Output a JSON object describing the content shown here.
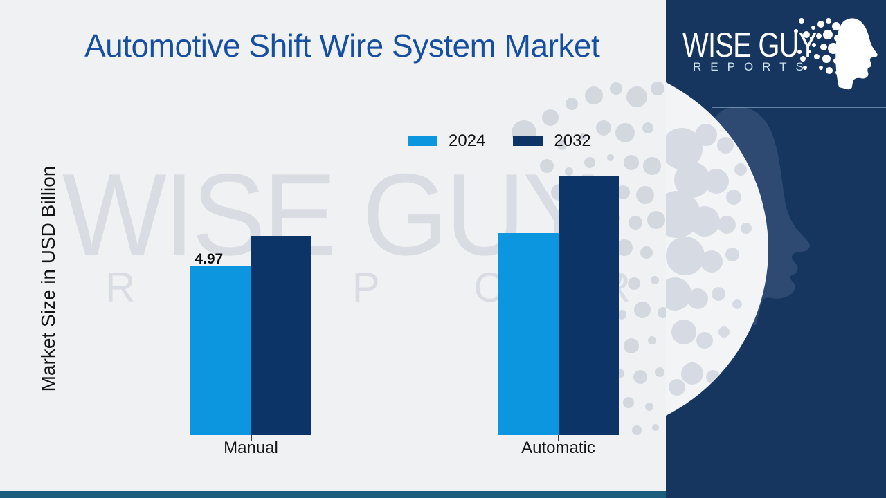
{
  "page": {
    "background": "#f0f1f2",
    "bottom_strip_color": "#1c5c7c"
  },
  "header": {
    "title": "Automotive Shift Wire System Market",
    "title_color": "#164fa2"
  },
  "branding": {
    "logo_line1": "WISE GUY",
    "logo_line2": "REPORTS",
    "watermark_line1": "WISE GUY",
    "watermark_line2": "R E P O R T S",
    "panel_color": "#16365f",
    "face_silhouette_color": "#2e4a72"
  },
  "chart_data": {
    "type": "bar",
    "title": "Automotive Shift Wire System Market",
    "xlabel": "",
    "ylabel": "Market Size in USD Billion",
    "categories": [
      "Manual",
      "Automatic"
    ],
    "series": [
      {
        "name": "2024",
        "color": "#0d96e0",
        "values": [
          4.97,
          5.94
        ]
      },
      {
        "name": "2032",
        "color": "#0d3466",
        "values": [
          5.86,
          7.61
        ]
      }
    ],
    "annotations": [
      {
        "category": "Manual",
        "series": "2024",
        "text": "4.97"
      }
    ],
    "legend_position": "top",
    "grid": false,
    "value_axis_ticks_visible": false,
    "ylim": [
      0,
      9
    ]
  }
}
